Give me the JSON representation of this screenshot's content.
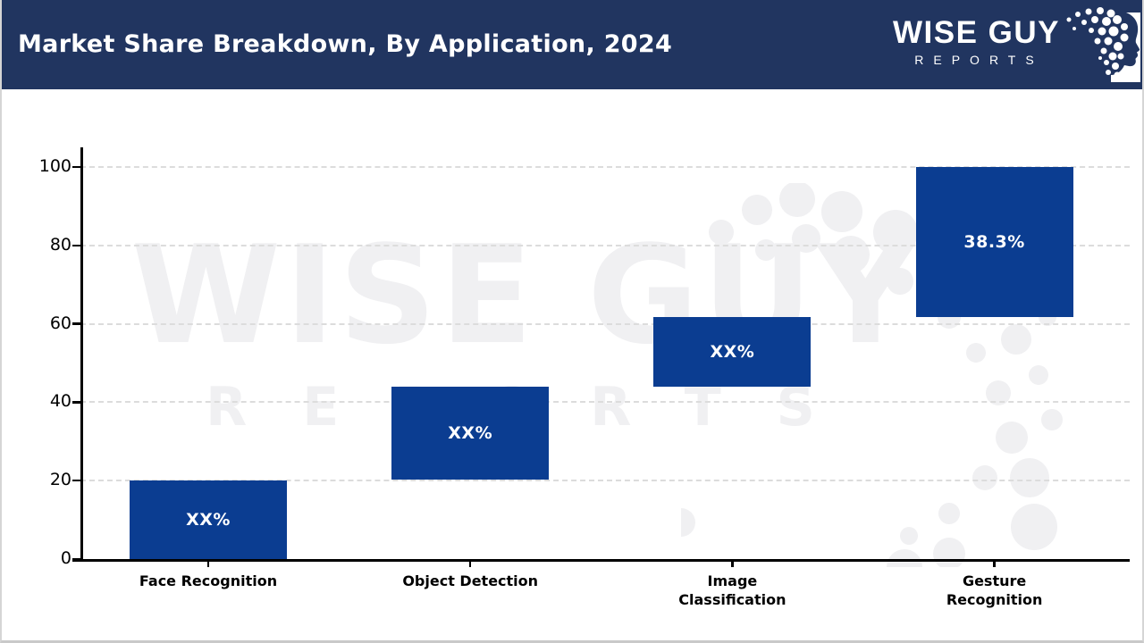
{
  "header": {
    "title": "Market Share Breakdown, By Application, 2024"
  },
  "brand": {
    "line1": "WISE GUY",
    "line2": "REPORTS"
  },
  "watermark": {
    "line1": "WISE GUY",
    "line2": "REPORTS"
  },
  "chart_data": {
    "type": "bar",
    "subtype": "waterfall",
    "title": "Market Share Breakdown, By Application, 2024",
    "categories": [
      "Face Recognition",
      "Object Detection",
      "Image Classification",
      "Gesture Recognition"
    ],
    "category_label_lines": [
      [
        "Face Recognition"
      ],
      [
        "Object Detection"
      ],
      [
        "Image",
        "Classification"
      ],
      [
        "Gesture",
        "Recognition"
      ]
    ],
    "segments": [
      {
        "category": "Face Recognition",
        "start": 0,
        "end": 20,
        "label": "XX%"
      },
      {
        "category": "Object Detection",
        "start": 20.3,
        "end": 43.9,
        "label": "XX%"
      },
      {
        "category": "Image Classification",
        "start": 43.9,
        "end": 61.8,
        "label": "XX%"
      },
      {
        "category": "Gesture Recognition",
        "start": 61.8,
        "end": 100,
        "label": "38.3%",
        "value": 38.3
      }
    ],
    "ylim": [
      0,
      100
    ],
    "yticks": [
      0,
      20,
      40,
      60,
      80,
      100
    ],
    "xlabel": "",
    "ylabel": "",
    "grid": {
      "horizontal": true,
      "style": "dashed",
      "color": "#dcdcdc"
    },
    "legend": "none",
    "colors": {
      "bar": "#0b3d91",
      "bar_label_text": "#ffffff",
      "axis": "#000000",
      "header_bg": "#213560",
      "watermark": "#f0f0f2"
    }
  }
}
